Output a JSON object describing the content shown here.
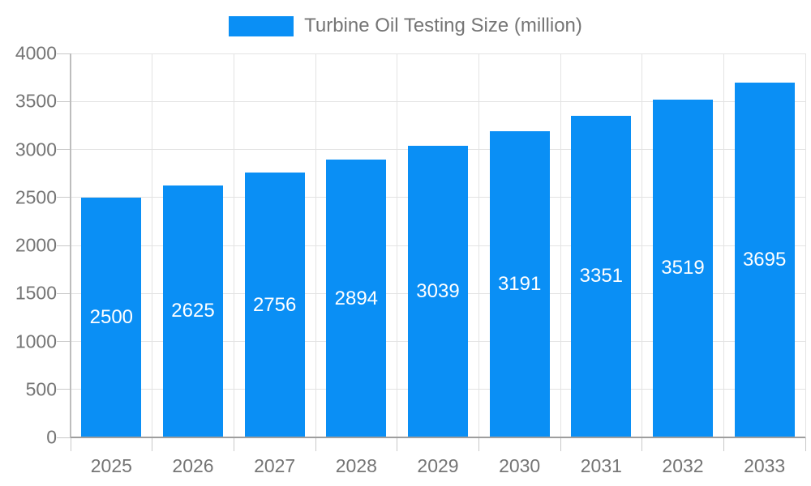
{
  "chart_data": {
    "type": "bar",
    "title": "Turbine Oil Testing Size (million)",
    "categories": [
      "2025",
      "2026",
      "2027",
      "2028",
      "2029",
      "2030",
      "2031",
      "2032",
      "2033"
    ],
    "values": [
      2500,
      2625,
      2756,
      2894,
      3039,
      3191,
      3351,
      3519,
      3695
    ],
    "series": [
      {
        "name": "Turbine Oil Testing Size (million)",
        "values": [
          2500,
          2625,
          2756,
          2894,
          3039,
          3191,
          3351,
          3519,
          3695
        ]
      }
    ],
    "xlabel": "",
    "ylabel": "",
    "ylim": [
      0,
      4000
    ],
    "y_ticks": [
      0,
      500,
      1000,
      1500,
      2000,
      2500,
      3000,
      3500,
      4000
    ],
    "grid": "on",
    "legend_position": "top-center",
    "bar_label_position": "inside-center",
    "colors": {
      "bar": "#0a8ff5",
      "bar_label": "#ffffff",
      "axis_text": "#757575",
      "gridline": "#e3e3e3",
      "x_axis_line": "#9e9e9e",
      "y_axis_line": "#bdbdbd"
    }
  }
}
